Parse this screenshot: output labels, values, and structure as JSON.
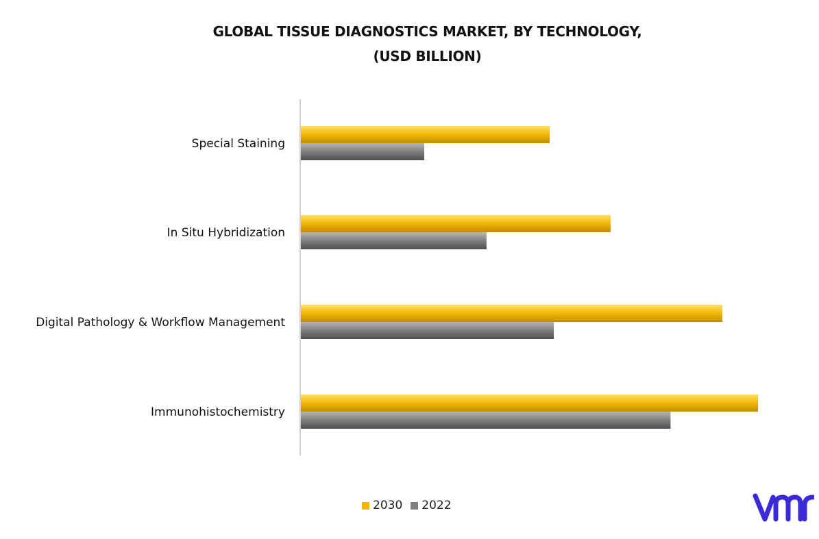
{
  "title_line1": "GLOBAL TISSUE DIAGNOSTICS MARKET, BY TECHNOLOGY,",
  "title_line2": "(USD BILLION)",
  "logo_text": "vmr",
  "colors": {
    "series_2030": "#f2b705",
    "series_2022": "#7f7f7f",
    "axis": "#bfbfbf",
    "logo": "#3a2bd6"
  },
  "chart_data": {
    "type": "bar",
    "orientation": "horizontal",
    "title": "GLOBAL TISSUE DIAGNOSTICS MARKET, BY TECHNOLOGY, (USD BILLION)",
    "categories": [
      "Special Staining",
      "In Situ Hybridization",
      "Digital Pathology & Workflow Management",
      "Immunohistochemistry"
    ],
    "series": [
      {
        "name": "2030",
        "values": [
          5.45,
          6.78,
          9.22,
          10.0
        ]
      },
      {
        "name": "2022",
        "values": [
          2.71,
          4.07,
          5.54,
          8.09
        ]
      }
    ],
    "xlim": [
      0,
      10
    ],
    "x_axis_visible": false,
    "grid": false,
    "legend_position": "bottom"
  },
  "legend": {
    "item1": "2030",
    "item2": "2022"
  }
}
